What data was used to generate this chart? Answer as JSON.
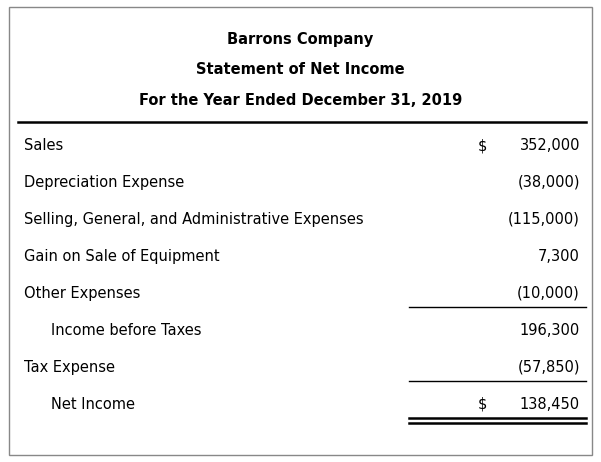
{
  "title1": "Barrons Company",
  "title2": "Statement of Net Income",
  "title3": "For the Year Ended December 31, 2019",
  "rows": [
    {
      "label": "Sales",
      "dollar": "$",
      "value": "352,000",
      "indent": false,
      "line_below": false,
      "double_underline": false
    },
    {
      "label": "Depreciation Expense",
      "dollar": "",
      "value": "(38,000)",
      "indent": false,
      "line_below": false,
      "double_underline": false
    },
    {
      "label": "Selling, General, and Administrative Expenses",
      "dollar": "",
      "value": "(115,000)",
      "indent": false,
      "line_below": false,
      "double_underline": false
    },
    {
      "label": "Gain on Sale of Equipment",
      "dollar": "",
      "value": "7,300",
      "indent": false,
      "line_below": false,
      "double_underline": false
    },
    {
      "label": "Other Expenses",
      "dollar": "",
      "value": "(10,000)",
      "indent": false,
      "line_below": true,
      "double_underline": false
    },
    {
      "label": "Income before Taxes",
      "dollar": "",
      "value": "196,300",
      "indent": true,
      "line_below": false,
      "double_underline": false
    },
    {
      "label": "Tax Expense",
      "dollar": "",
      "value": "(57,850)",
      "indent": false,
      "line_below": true,
      "double_underline": false
    },
    {
      "label": "Net Income",
      "dollar": "$",
      "value": "138,450",
      "indent": true,
      "line_below": false,
      "double_underline": true
    }
  ],
  "bg_color": "#ffffff",
  "border_color": "#888888",
  "text_color": "#000000",
  "line_color": "#000000",
  "title_fontsize": 10.5,
  "body_fontsize": 10.5,
  "figwidth": 6.01,
  "figheight": 4.62,
  "dpi": 100
}
